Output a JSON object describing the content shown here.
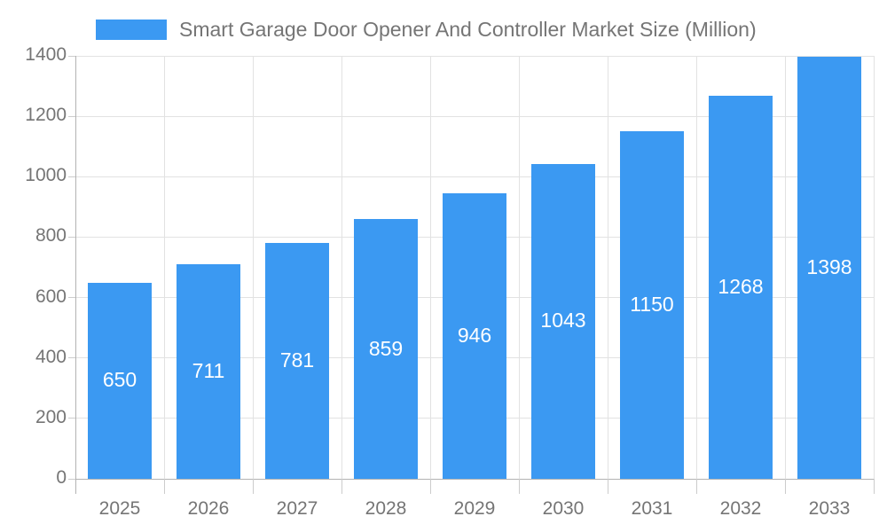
{
  "legend": {
    "label": "Smart Garage Door Opener And Controller Market Size (Million)"
  },
  "chart_data": {
    "type": "bar",
    "title": "Smart Garage Door Opener And Controller Market Size (Million)",
    "categories": [
      "2025",
      "2026",
      "2027",
      "2028",
      "2029",
      "2030",
      "2031",
      "2032",
      "2033"
    ],
    "values": [
      650,
      711,
      781,
      859,
      946,
      1043,
      1150,
      1268,
      1398
    ],
    "xlabel": "",
    "ylabel": "",
    "ylim": [
      0,
      1400
    ],
    "yticks": [
      0,
      200,
      400,
      600,
      800,
      1000,
      1200,
      1400
    ],
    "grid": true,
    "legend_position": "top",
    "colors": {
      "bar": "#3b99f2",
      "value_label": "#ffffff",
      "axis_text": "#757575",
      "grid_line": "#e2e2e2",
      "axis_line": "#b3b3b3",
      "tick_line": "#cccccc"
    }
  }
}
